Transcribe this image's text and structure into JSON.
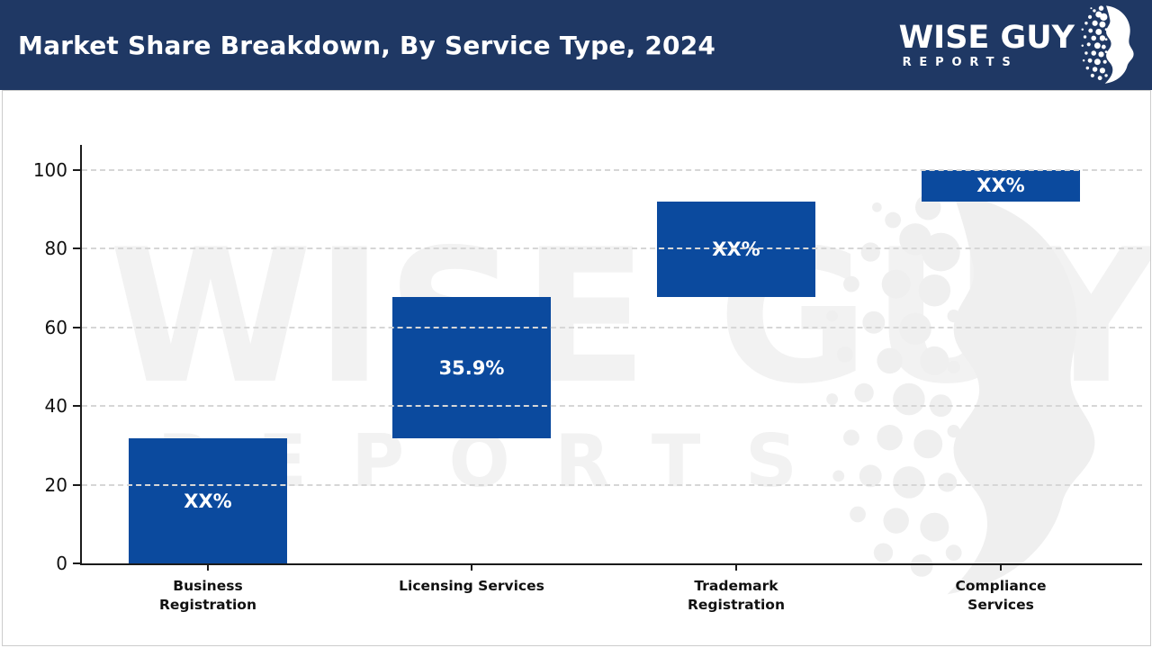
{
  "header": {
    "title": "Market Share Breakdown, By Service Type, 2024"
  },
  "brand": {
    "name": "WISE GUY",
    "subtitle": "REPORTS",
    "face_icon": "dotted-face-profile"
  },
  "watermark": {
    "line1": "WISE GUY",
    "line2": "REPORTS"
  },
  "colors": {
    "header_bg": "#1f3864",
    "bar_blue": "#0b4a9e",
    "bar_label": "#ffffff",
    "axis": "#1b1b1b",
    "grid": "#d6d6d6",
    "panel_border": "#cccccc",
    "watermark": "#f2f2f2"
  },
  "chart_data": {
    "type": "bar",
    "variant": "waterfall",
    "title": "Market Share Breakdown, By Service Type, 2024",
    "xlabel": "",
    "ylabel": "",
    "ylim": [
      0,
      106
    ],
    "yticks": [
      0,
      20,
      40,
      60,
      80,
      100
    ],
    "grid": "dashed horizontal, drawn over bars",
    "legend": "none",
    "categories": [
      "Business Registration",
      "Licensing Services",
      "Trademark Registration",
      "Compliance Services"
    ],
    "segments": [
      {
        "category": "Business Registration",
        "tick_lines": [
          "Business",
          "Registration"
        ],
        "start": 0,
        "end": 31.7,
        "implied_value": 31.7,
        "label": "XX%"
      },
      {
        "category": "Licensing Services",
        "tick_lines": [
          "Licensing Services"
        ],
        "start": 31.7,
        "end": 67.6,
        "implied_value": 35.9,
        "label": "35.9%"
      },
      {
        "category": "Trademark Registration",
        "tick_lines": [
          "Trademark",
          "Registration"
        ],
        "start": 67.6,
        "end": 92.0,
        "implied_value": 24.4,
        "label": "XX%"
      },
      {
        "category": "Compliance Services",
        "tick_lines": [
          "Compliance",
          "Services"
        ],
        "start": 92.0,
        "end": 100.0,
        "implied_value": 8.0,
        "label": "XX%"
      }
    ],
    "bar_color": "#0b4a9e",
    "label_color": "#ffffff"
  }
}
